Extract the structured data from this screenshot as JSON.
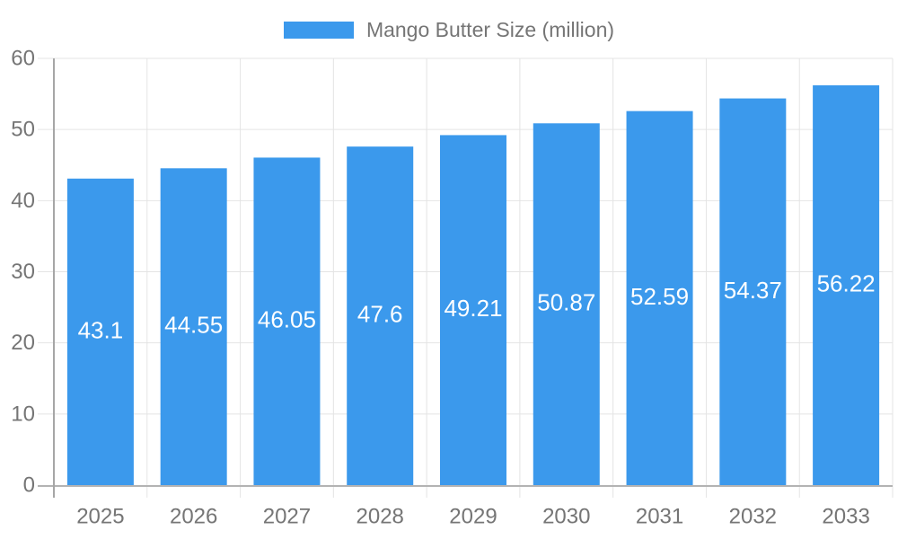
{
  "chart_data": {
    "type": "bar",
    "title": "",
    "legend": "Mango Butter Size (million)",
    "legend_position": "top-center",
    "categories": [
      "2025",
      "2026",
      "2027",
      "2028",
      "2029",
      "2030",
      "2031",
      "2032",
      "2033"
    ],
    "values": [
      43.1,
      44.55,
      46.05,
      47.6,
      49.21,
      50.87,
      52.59,
      54.37,
      56.22
    ],
    "value_labels": [
      "43.1",
      "44.55",
      "46.05",
      "47.6",
      "49.21",
      "50.87",
      "52.59",
      "54.37",
      "56.22"
    ],
    "xlabel": "",
    "ylabel": "",
    "ylim": [
      0,
      60
    ],
    "yticks": [
      0,
      10,
      20,
      30,
      40,
      50,
      60
    ],
    "grid": true,
    "colors": {
      "bar": "#3B99EC",
      "axis_text": "#757575",
      "bar_label_text": "#ffffff",
      "grid_line": "#e4e4e4",
      "axis_line": "#a6a6a6",
      "baseline": "#b3b3b3",
      "background": "#ffffff"
    }
  }
}
